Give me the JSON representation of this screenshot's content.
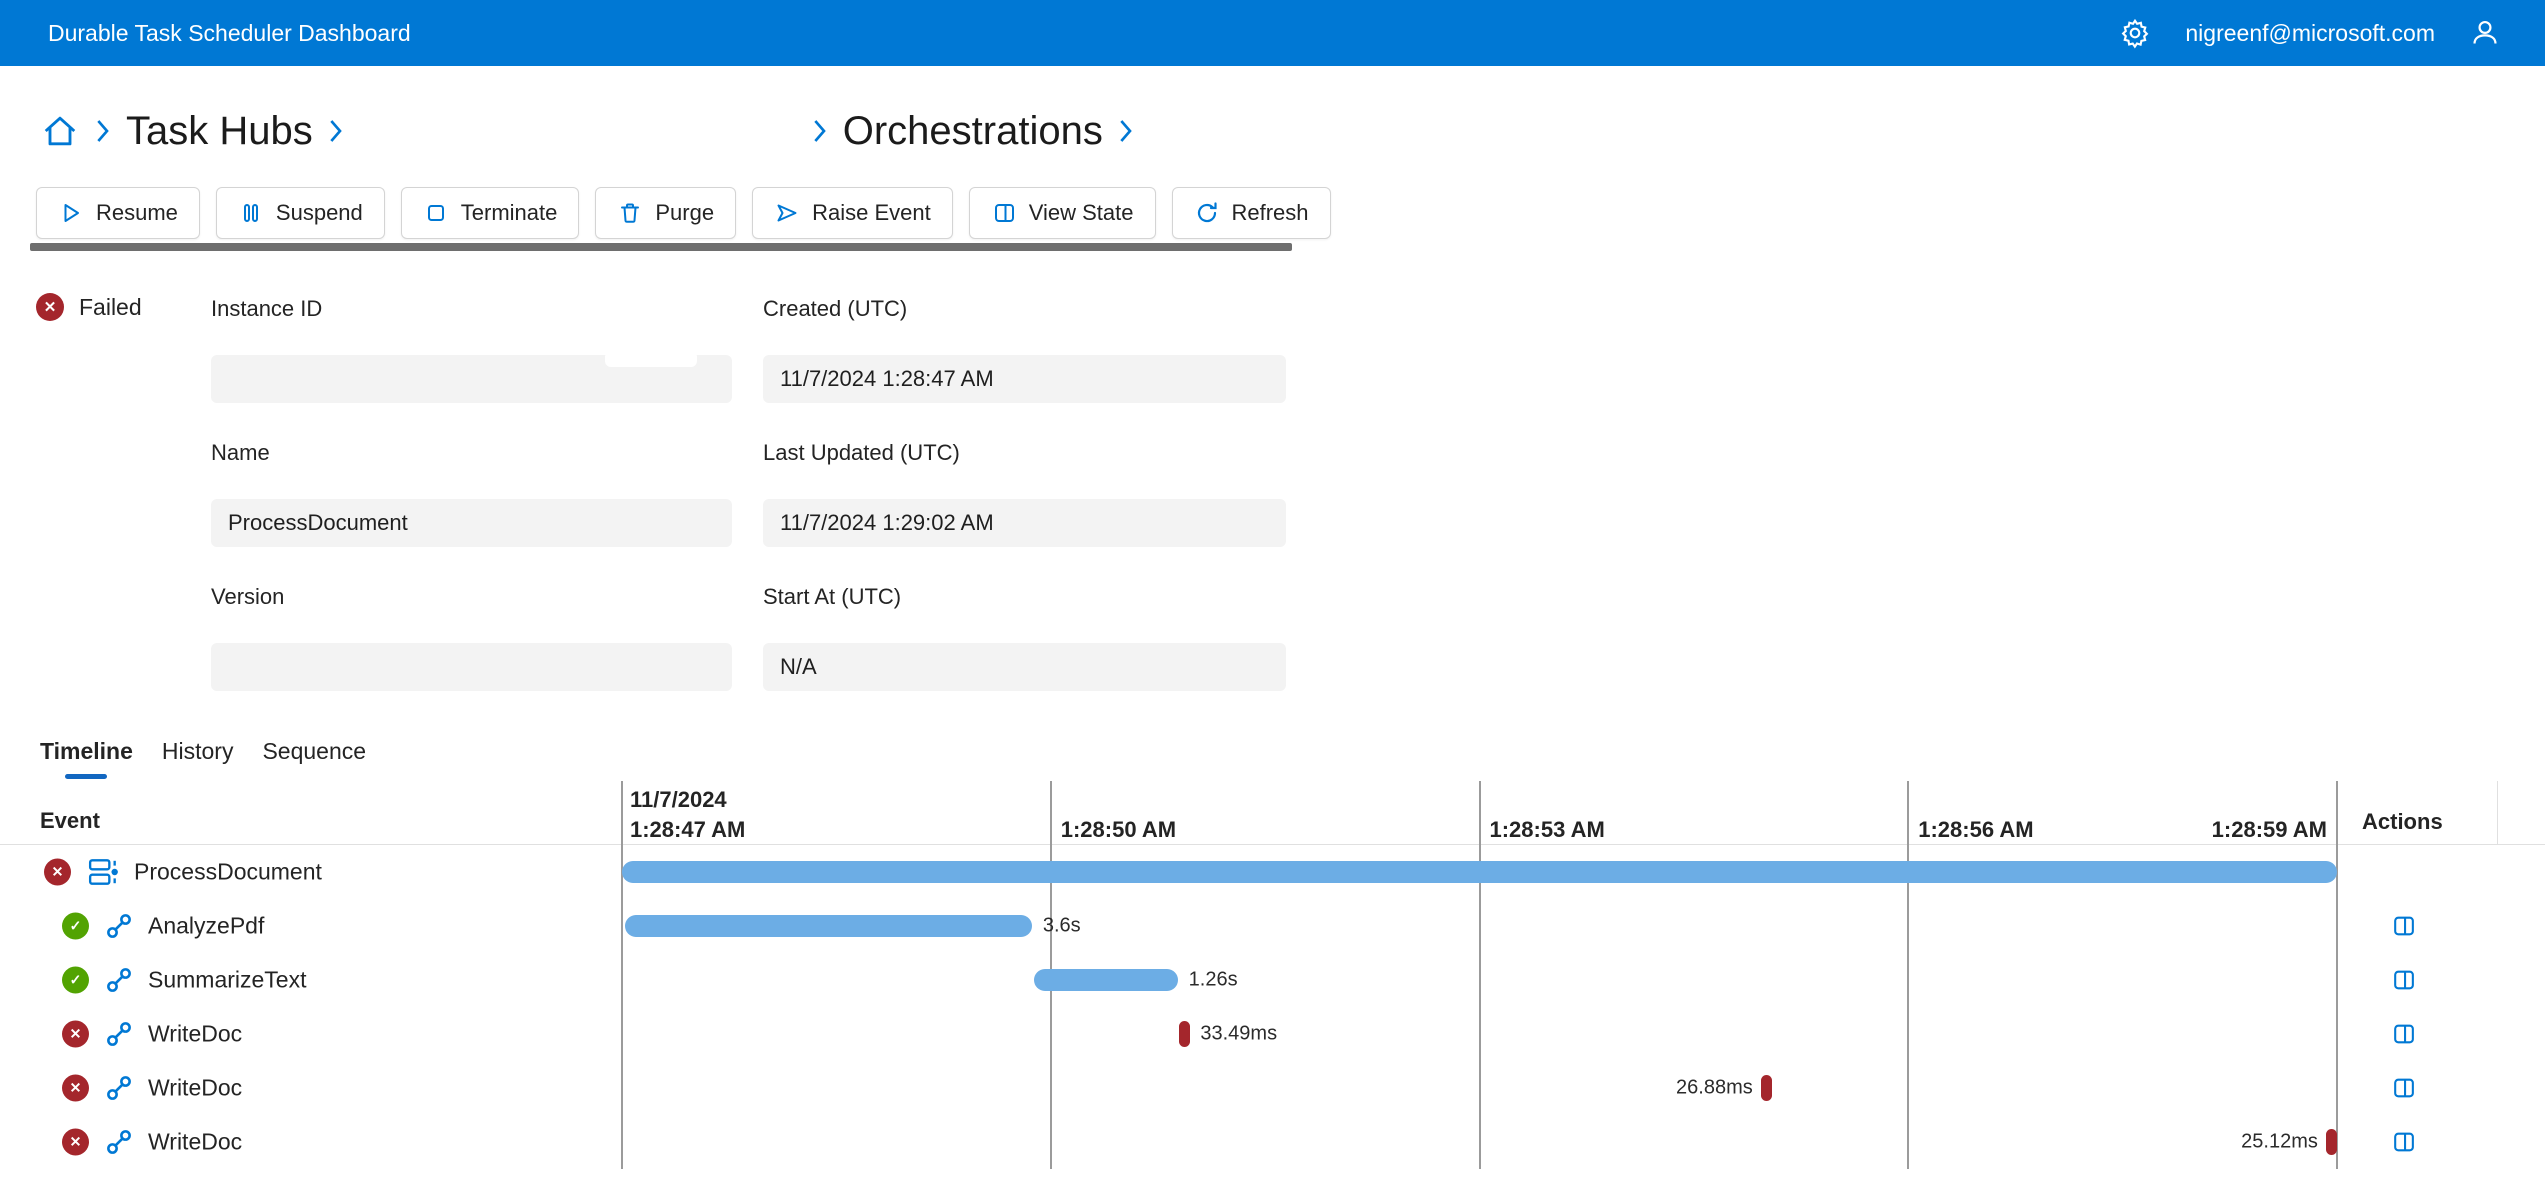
{
  "topbar": {
    "title": "Durable Task Scheduler Dashboard",
    "user_email": "nigreenf@microsoft.com"
  },
  "breadcrumb": {
    "items": [
      "Task Hubs",
      "Orchestrations"
    ]
  },
  "toolbar": {
    "buttons": [
      {
        "label": "Resume",
        "icon": "play-icon"
      },
      {
        "label": "Suspend",
        "icon": "pause-icon"
      },
      {
        "label": "Terminate",
        "icon": "stop-icon"
      },
      {
        "label": "Purge",
        "icon": "trash-icon"
      },
      {
        "label": "Raise Event",
        "icon": "send-icon"
      },
      {
        "label": "View State",
        "icon": "split-panel-icon"
      },
      {
        "label": "Refresh",
        "icon": "refresh-icon"
      }
    ]
  },
  "details": {
    "status": "Failed",
    "fields": [
      {
        "label": "Instance ID",
        "value": "",
        "redacted": true
      },
      {
        "label": "Created (UTC)",
        "value": "11/7/2024 1:28:47 AM",
        "redacted": false
      },
      {
        "label": "Name",
        "value": "ProcessDocument",
        "redacted": false
      },
      {
        "label": "Last Updated (UTC)",
        "value": "11/7/2024 1:29:02 AM",
        "redacted": false
      },
      {
        "label": "Version",
        "value": "",
        "redacted": false
      },
      {
        "label": "Start At (UTC)",
        "value": "N/A",
        "redacted": false
      }
    ]
  },
  "tabs": [
    {
      "label": "Timeline",
      "active": true
    },
    {
      "label": "History",
      "active": false
    },
    {
      "label": "Sequence",
      "active": false
    }
  ],
  "timeline": {
    "event_header": "Event",
    "actions_header": "Actions",
    "axis": {
      "date": "11/7/2024",
      "ticks": [
        "1:28:47 AM",
        "1:28:50 AM",
        "1:28:53 AM",
        "1:28:56 AM",
        "1:28:59 AM"
      ],
      "grid_pcts": [
        0,
        25,
        50,
        75,
        100
      ]
    },
    "rows": [
      {
        "name": "ProcessDocument",
        "status": "failed",
        "type": "orchestration",
        "duration": "",
        "label_side": "right",
        "has_action": false,
        "bar": {
          "kind": "bar",
          "start_pct": 0.0,
          "width_pct": 100.0
        }
      },
      {
        "name": "AnalyzePdf",
        "status": "succeeded",
        "type": "activity",
        "duration": "3.6s",
        "label_side": "right",
        "has_action": true,
        "bar": {
          "kind": "bar",
          "start_pct": 0.2,
          "width_pct": 23.7
        }
      },
      {
        "name": "SummarizeText",
        "status": "succeeded",
        "type": "activity",
        "duration": "1.26s",
        "label_side": "right",
        "has_action": true,
        "bar": {
          "kind": "bar",
          "start_pct": 24.0,
          "width_pct": 8.4
        }
      },
      {
        "name": "WriteDoc",
        "status": "failed",
        "type": "activity",
        "duration": "33.49ms",
        "label_side": "right",
        "has_action": true,
        "bar": {
          "kind": "tick",
          "start_pct": 32.5,
          "width_pct": 0
        }
      },
      {
        "name": "WriteDoc",
        "status": "failed",
        "type": "activity",
        "duration": "26.88ms",
        "label_side": "left",
        "has_action": true,
        "bar": {
          "kind": "tick",
          "start_pct": 66.4,
          "width_pct": 0
        }
      },
      {
        "name": "WriteDoc",
        "status": "failed",
        "type": "activity",
        "duration": "25.12ms",
        "label_side": "left",
        "has_action": true,
        "bar": {
          "kind": "tick",
          "start_pct": 99.35,
          "width_pct": 0
        }
      }
    ]
  },
  "icons": {
    "failed_glyph": "✕",
    "succeeded_glyph": "✓"
  },
  "colors": {
    "topbar_blue": "#0078d4",
    "bar_blue": "#6cade5",
    "failed_red": "#a4262c",
    "succeeded_green": "#52a302"
  }
}
